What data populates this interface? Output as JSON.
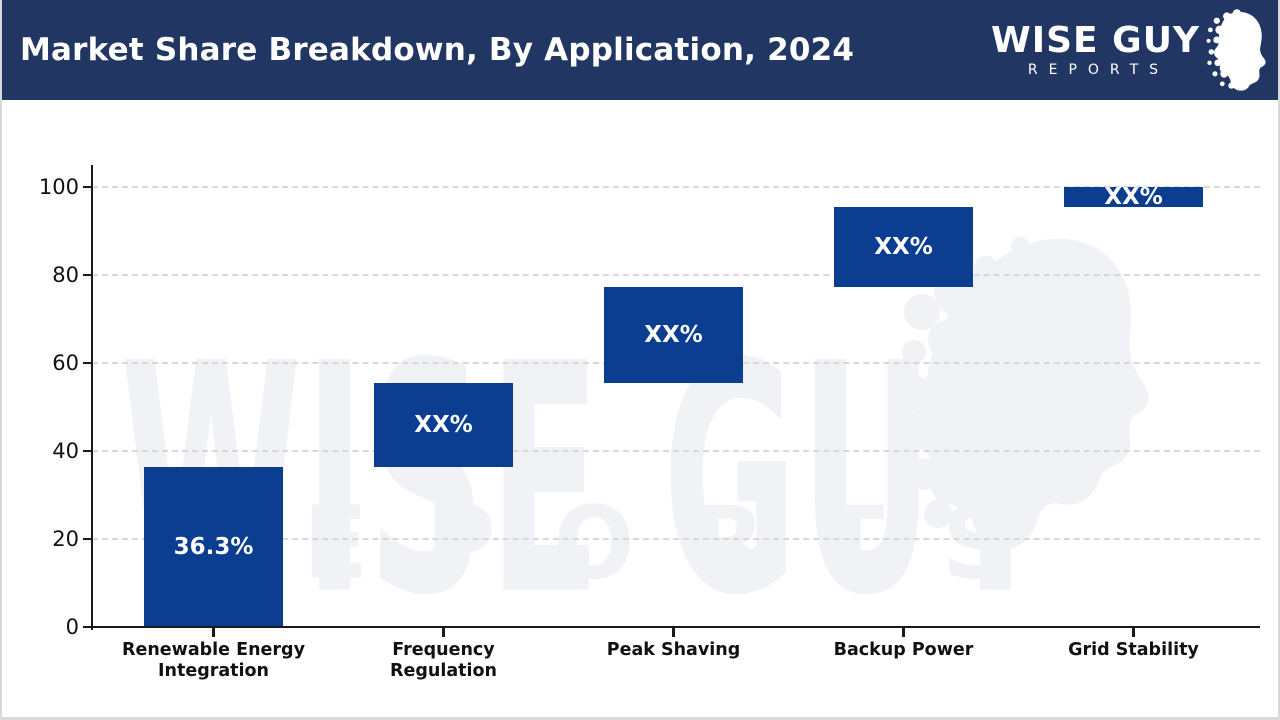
{
  "page": {
    "bg": "#ffffff",
    "border_color": "#d9d9d9"
  },
  "header": {
    "bg": "#213663",
    "title": "Market Share Breakdown, By Application, 2024",
    "logo": {
      "name": "WISE GUY",
      "sub": "REPORTS"
    }
  },
  "watermark": {
    "line1": "WISE GUY",
    "line2": "REPORTS"
  },
  "chart_data": {
    "type": "bar",
    "variant": "waterfall-floating-bars",
    "title": "Market Share Breakdown, By Application, 2024",
    "categories": [
      [
        "Renewable Energy",
        "Integration"
      ],
      [
        "Frequency",
        "Regulation"
      ],
      [
        "Peak Shaving"
      ],
      [
        "Backup Power"
      ],
      [
        "Grid Stability"
      ]
    ],
    "segments": [
      {
        "category": "Renewable Energy Integration",
        "start": 0,
        "end": 36.3,
        "value_label": "36.3%"
      },
      {
        "category": "Frequency Regulation",
        "start": 36.3,
        "end": 55.5,
        "value_label": "XX%"
      },
      {
        "category": "Peak Shaving",
        "start": 55.5,
        "end": 77.3,
        "value_label": "XX%"
      },
      {
        "category": "Backup Power",
        "start": 77.3,
        "end": 95.5,
        "value_label": "XX%"
      },
      {
        "category": "Grid Stability",
        "start": 95.5,
        "end": 100,
        "value_label": "XX%"
      }
    ],
    "yticks": [
      0,
      20,
      40,
      60,
      80,
      100
    ],
    "ylim": [
      0,
      105
    ],
    "xlabel": "",
    "ylabel": "",
    "grid": true,
    "gridline_style": "dashed",
    "legend": false,
    "bar_color": "#0b3d91",
    "bar_label_color": "#ffffff",
    "axis_color": "#1a1a1a",
    "grid_color": "#d8d8d8",
    "header_color": "#213663"
  }
}
